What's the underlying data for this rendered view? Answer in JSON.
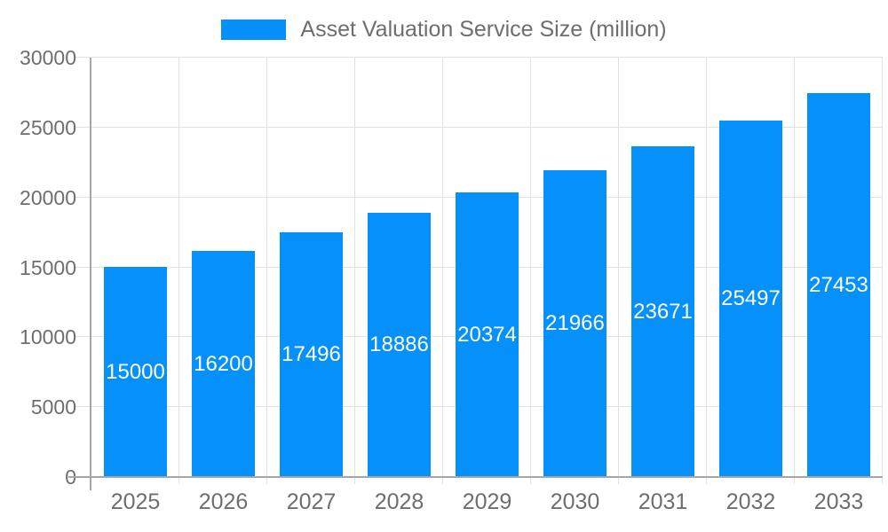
{
  "legend": {
    "series_label": "Asset Valuation Service Size (million)"
  },
  "chart_data": {
    "type": "bar",
    "title": "Asset Valuation Service Size (million)",
    "categories": [
      "2025",
      "2026",
      "2027",
      "2028",
      "2029",
      "2030",
      "2031",
      "2032",
      "2033"
    ],
    "series": [
      {
        "name": "Asset Valuation Service Size (million)",
        "values": [
          15000,
          16200,
          17496,
          18886,
          20374,
          21966,
          23671,
          25497,
          27453
        ]
      }
    ],
    "value_labels": [
      "15000",
      "16200",
      "17496",
      "18886",
      "20374",
      "21966",
      "23671",
      "25497",
      "27453"
    ],
    "xlabel": "",
    "ylabel": "",
    "ylim": [
      0,
      30000
    ],
    "y_tick_step": 5000,
    "y_tick_labels": [
      "0",
      "5000",
      "10000",
      "15000",
      "20000",
      "25000",
      "30000"
    ],
    "grid": "horizontal and vertical gridlines on",
    "legend_position": "top-center",
    "value_label_position": "center of bar",
    "colors": {
      "bar": "#0590FA",
      "grid": "#E2E2E2",
      "axis": "#A6A6A6",
      "label_text": "#6E6E6E",
      "value_label_text": "#FFFFFF",
      "background": "#FFFFFF"
    }
  }
}
